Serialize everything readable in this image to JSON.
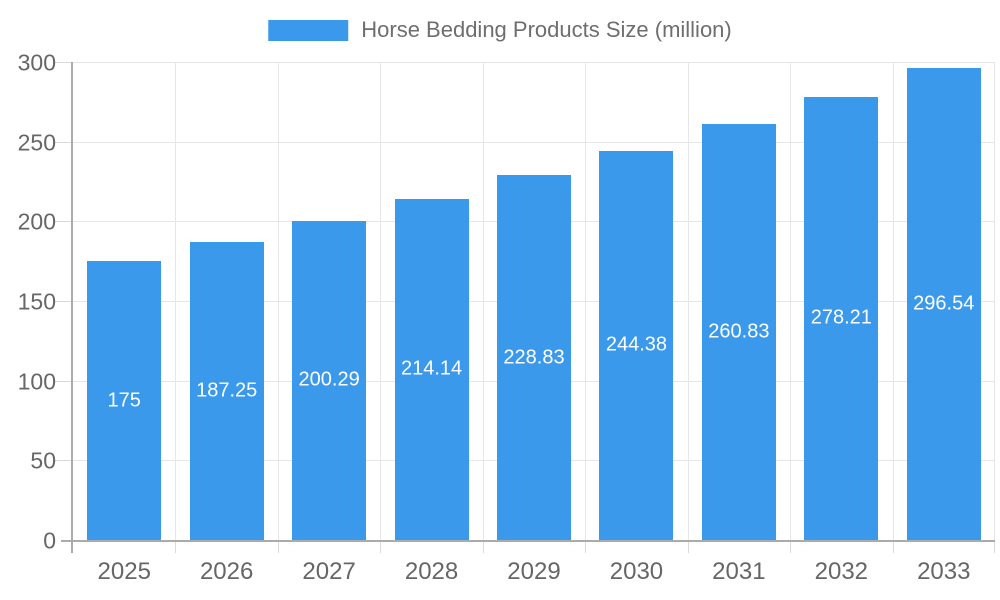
{
  "legend": {
    "label": "Horse Bedding Products Size (million)"
  },
  "chart_data": {
    "type": "bar",
    "title": "Horse Bedding Products Size (million)",
    "categories": [
      "2025",
      "2026",
      "2027",
      "2028",
      "2029",
      "2030",
      "2031",
      "2032",
      "2033"
    ],
    "values": [
      175,
      187.25,
      200.29,
      214.14,
      228.83,
      244.38,
      260.83,
      278.21,
      296.54
    ],
    "value_labels": [
      "175",
      "187.25",
      "200.29",
      "214.14",
      "228.83",
      "244.38",
      "260.83",
      "278.21",
      "296.54"
    ],
    "xlabel": "",
    "ylabel": "",
    "ylim": [
      0,
      300
    ],
    "ytick_step": 50,
    "ytick_labels": [
      "0",
      "50",
      "100",
      "150",
      "200",
      "250",
      "300"
    ],
    "grid": true,
    "legend_position": "top",
    "colors": {
      "bar": "#3b99ec",
      "grid": "#e6e6e6",
      "axis": "#ababab",
      "tick": "#d9d9d9",
      "axis_label": "#666666",
      "legend_text": "#6e6e6e",
      "value_label": "#ffffff",
      "background": "#ffffff"
    }
  }
}
